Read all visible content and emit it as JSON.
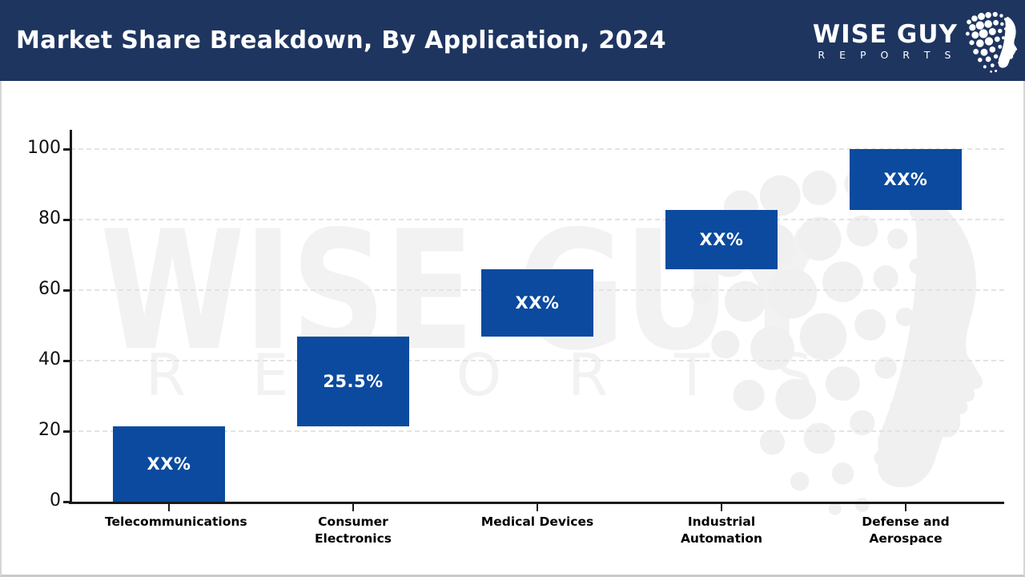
{
  "header": {
    "bg_color": "#1e3560",
    "title": "Market Share Breakdown, By Application, 2024",
    "logo": {
      "line1": "WISE GUY",
      "line2": "R E P O R T S"
    }
  },
  "watermark": {
    "line1": "WISE GUY",
    "line2": "R E P O R T S"
  },
  "chart_data": {
    "type": "bar",
    "subtype": "waterfall",
    "title": "Market Share Breakdown, By Application, 2024",
    "categories": [
      "Telecommunications",
      "Consumer Electronics",
      "Medical Devices",
      "Industrial Automation",
      "Defense and Aerospace"
    ],
    "bars": [
      {
        "category": "Telecommunications",
        "start": 0,
        "end": 21.4,
        "label": "XX%"
      },
      {
        "category": "Consumer Electronics",
        "start": 21.4,
        "end": 46.9,
        "label": "25.5%",
        "value": 25.5
      },
      {
        "category": "Medical Devices",
        "start": 46.9,
        "end": 65.8,
        "label": "XX%"
      },
      {
        "category": "Industrial Automation",
        "start": 65.8,
        "end": 82.8,
        "label": "XX%"
      },
      {
        "category": "Defense and Aerospace",
        "start": 82.8,
        "end": 100,
        "label": "XX%"
      }
    ],
    "ylim": [
      0,
      100
    ],
    "yticks": [
      0,
      20,
      40,
      60,
      80,
      100
    ],
    "xlabel": "",
    "ylabel": "",
    "grid": "horizontal-dashed",
    "legend": "none",
    "bar_color": "#0b4a9e",
    "bar_label_color": "#ffffff",
    "axis_color": "#1a1a1a",
    "gridline_color": "#e3e3e3"
  }
}
